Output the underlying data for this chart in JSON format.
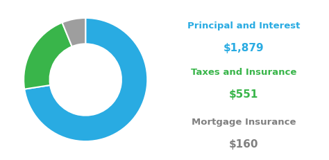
{
  "slices": [
    1879,
    551,
    160
  ],
  "colors": [
    "#29ABE2",
    "#39B54A",
    "#9E9E9E"
  ],
  "labels": [
    "Principal and Interest",
    "Taxes and Insurance",
    "Mortgage Insurance"
  ],
  "amounts": [
    "$1,879",
    "$551",
    "$160"
  ],
  "label_colors": [
    "#29ABE2",
    "#39B54A",
    "#808080"
  ],
  "background_color": "#FFFFFF",
  "wedge_edge_color": "#FFFFFF",
  "donut_width": 0.42
}
